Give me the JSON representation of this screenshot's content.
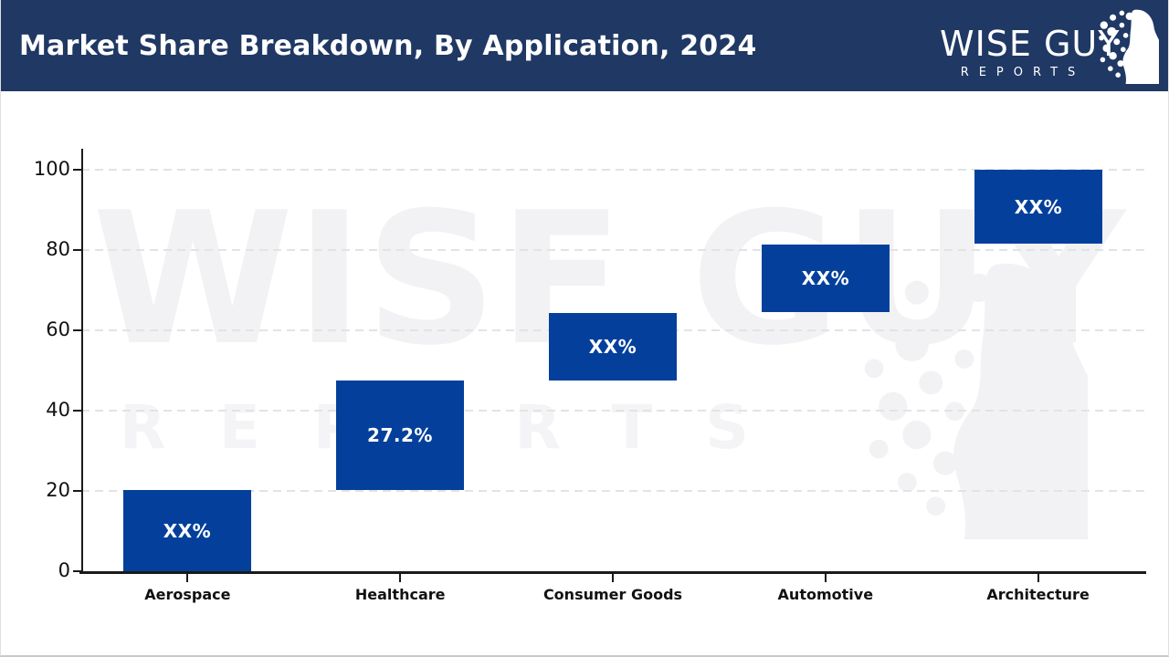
{
  "header": {
    "title": "Market Share Breakdown, By Application, 2024",
    "bg_color": "#1F3864",
    "logo": {
      "line1": "WISE GUY",
      "line2": "REPORTS"
    }
  },
  "watermark": {
    "line1": "WISE GUY",
    "line2": "REPORTS"
  },
  "chart_data": {
    "type": "bar",
    "subtype": "waterfall-floating-bars",
    "title": "Market Share Breakdown, By Application, 2024",
    "xlabel": "",
    "ylabel": "",
    "categories": [
      "Aerospace",
      "Healthcare",
      "Consumer Goods",
      "Automotive",
      "Architecture"
    ],
    "segments": [
      {
        "category": "Aerospace",
        "start": 0,
        "end": 20.2,
        "value": 20.2,
        "label": "XX%"
      },
      {
        "category": "Healthcare",
        "start": 20.4,
        "end": 47.6,
        "value": 27.2,
        "label": "27.2%"
      },
      {
        "category": "Consumer Goods",
        "start": 47.6,
        "end": 64.4,
        "value": 16.8,
        "label": "XX%"
      },
      {
        "category": "Automotive",
        "start": 64.6,
        "end": 81.4,
        "value": 16.8,
        "label": "XX%"
      },
      {
        "category": "Architecture",
        "start": 81.6,
        "end": 100,
        "value": 18.4,
        "label": "XX%"
      }
    ],
    "ylim": [
      0,
      100
    ],
    "yticks": [
      0,
      20,
      40,
      60,
      80,
      100
    ],
    "grid": "horizontal-dashed",
    "legend": "none",
    "bar_color": "#04409B",
    "bar_label_color": "#ffffff",
    "axis_color": "#1a1a1a",
    "gridline_color": "#e3e3e5"
  }
}
